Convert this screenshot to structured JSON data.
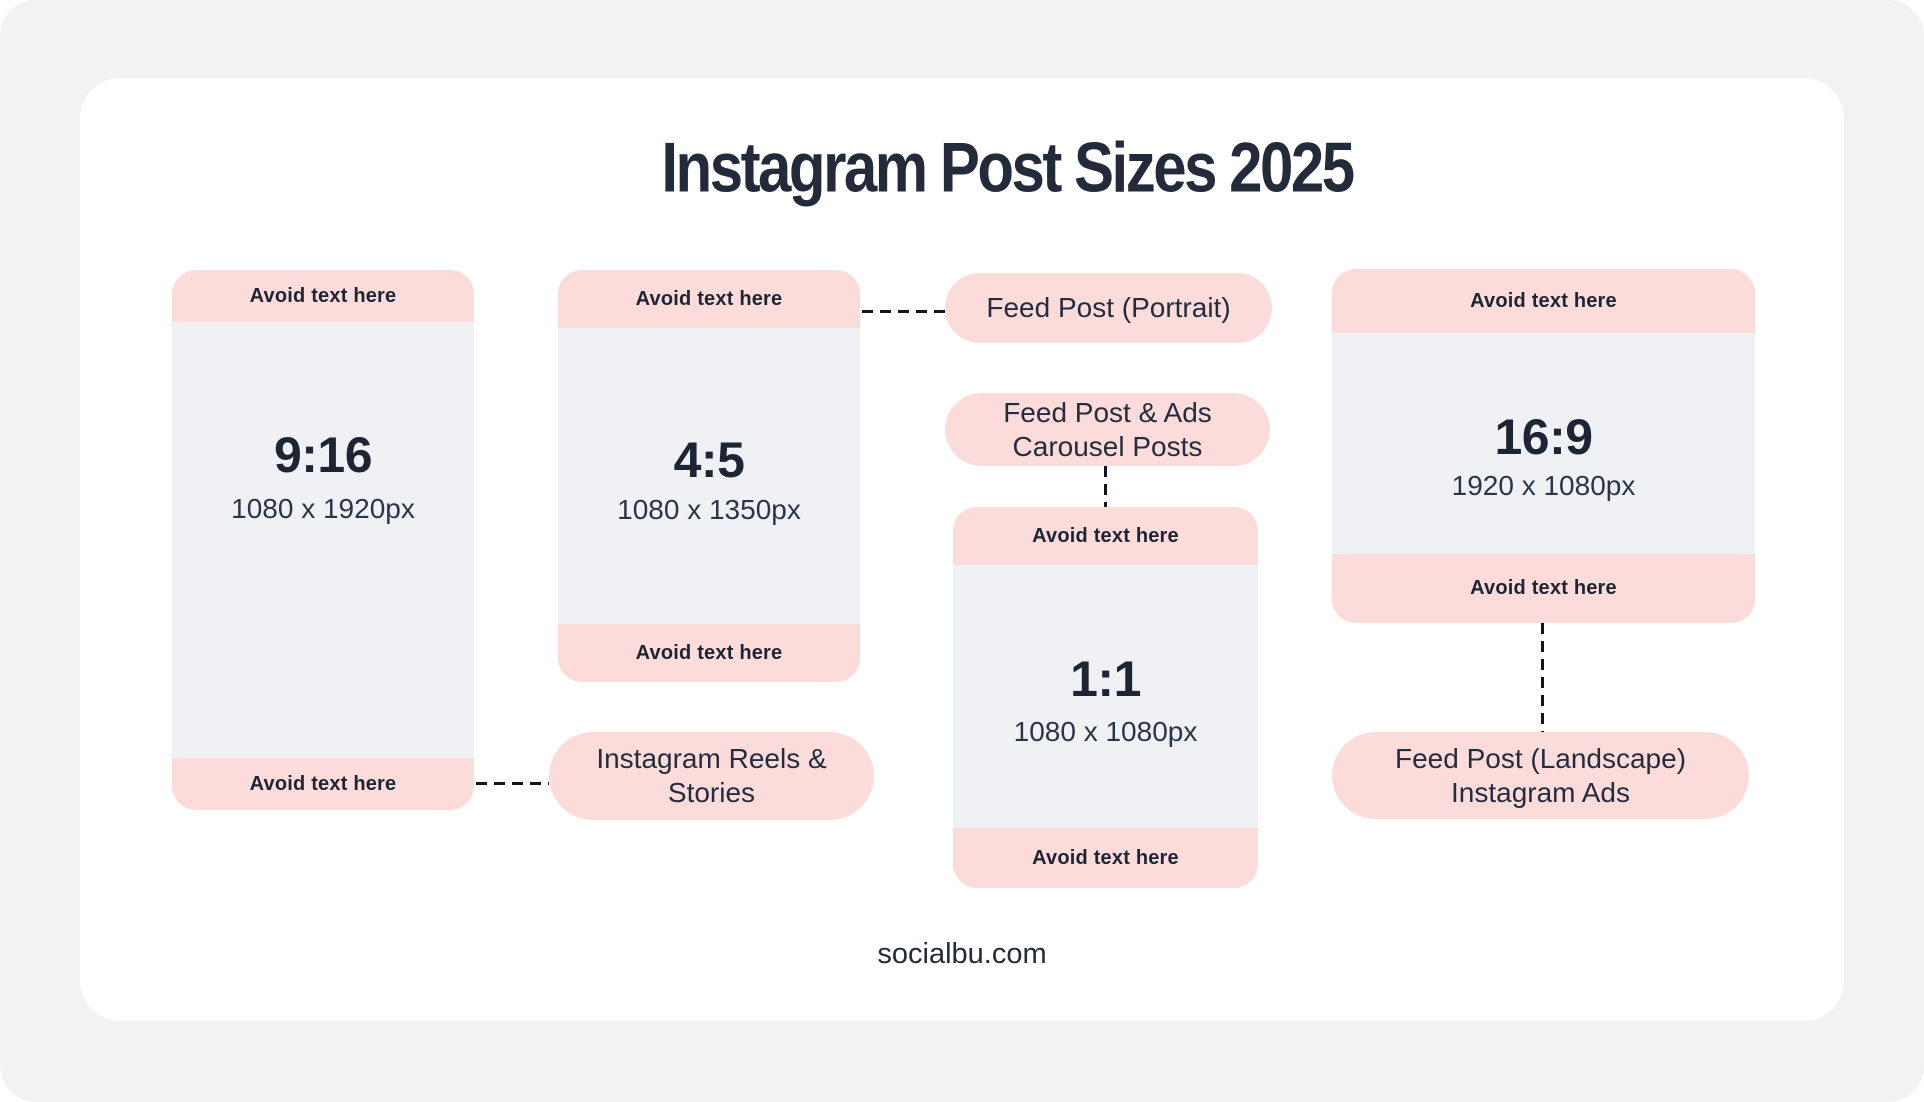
{
  "title": "Instagram Post Sizes 2025",
  "cards": [
    {
      "ratio": "9:16",
      "dimensions": "1080 x 1920px",
      "avoid_top": "Avoid text here",
      "avoid_bottom": "Avoid text here"
    },
    {
      "ratio": "4:5",
      "dimensions": "1080 x 1350px",
      "avoid_top": "Avoid text here",
      "avoid_bottom": "Avoid text here"
    },
    {
      "ratio": "1:1",
      "dimensions": "1080 x 1080px",
      "avoid_top": "Avoid text here",
      "avoid_bottom": "Avoid text here"
    },
    {
      "ratio": "16:9",
      "dimensions": "1920 x 1080px",
      "avoid_top": "Avoid text here",
      "avoid_bottom": "Avoid text here"
    }
  ],
  "labels": {
    "portrait": {
      "lines": [
        "Feed Post (Portrait)"
      ],
      "target_ratio": "4:5"
    },
    "carousel": {
      "lines": [
        "Feed Post & Ads",
        "Carousel Posts"
      ],
      "target_ratio": "1:1"
    },
    "reels": {
      "lines": [
        "Instagram Reels &",
        "Stories"
      ],
      "target_ratio": "9:16"
    },
    "landscape": {
      "lines": [
        "Feed Post (Landscape)",
        "Instagram Ads"
      ],
      "target_ratio": "16:9"
    }
  },
  "footer": {
    "website": "socialbu.com"
  },
  "colors": {
    "background": "#f1f2f4",
    "panel": "#ffffff",
    "pink": "#fcdbdb",
    "safe_area_gray": "#f0f1f4",
    "ink": "#222b3a",
    "connector": "#10151f"
  }
}
